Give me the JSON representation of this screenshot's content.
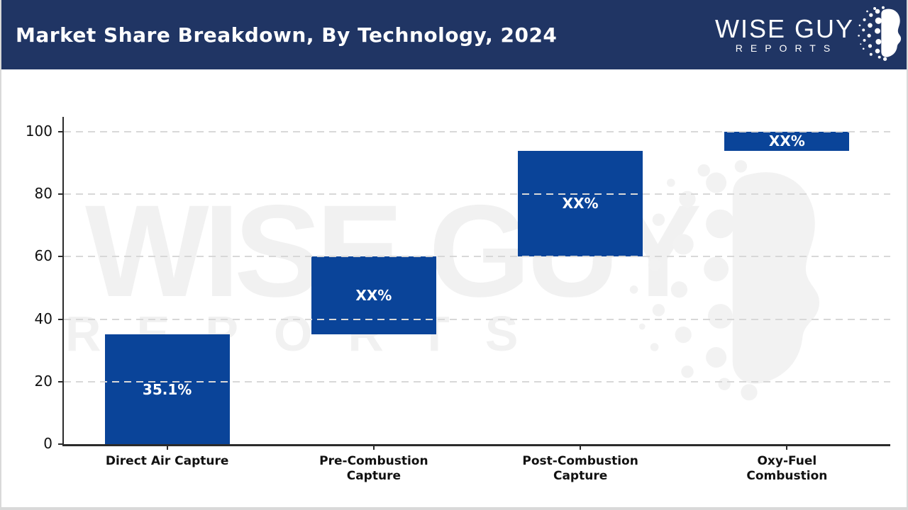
{
  "header": {
    "title": "Market Share Breakdown, By Technology, 2024",
    "logo": {
      "line1": "WISE GUY",
      "line2": "REPORTS"
    }
  },
  "watermark": {
    "line1": "WISE GUY",
    "line2": "REPORTS"
  },
  "chart_data": {
    "type": "bar",
    "subtype": "waterfall",
    "title": "Market Share Breakdown, By Technology, 2024",
    "xlabel": "",
    "ylabel": "",
    "categories": [
      "Direct Air Capture",
      "Pre-Combustion Capture",
      "Post-Combustion Capture",
      "Oxy-Fuel Combustion"
    ],
    "category_lines": [
      [
        "Direct Air Capture"
      ],
      [
        "Pre-Combustion",
        "Capture"
      ],
      [
        "Post-Combustion",
        "Capture"
      ],
      [
        "Oxy-Fuel",
        "Combustion"
      ]
    ],
    "segments": [
      {
        "category": "Direct Air Capture",
        "start": 0,
        "end": 35.1,
        "label": "35.1%"
      },
      {
        "category": "Pre-Combustion Capture",
        "start": 35.1,
        "end": 60.2,
        "label": "XX%"
      },
      {
        "category": "Post-Combustion Capture",
        "start": 60.2,
        "end": 93.9,
        "label": "XX%"
      },
      {
        "category": "Oxy-Fuel Combustion",
        "start": 93.9,
        "end": 100,
        "label": "XX%"
      }
    ],
    "yticks": [
      0,
      20,
      40,
      60,
      80,
      100
    ],
    "ylim": [
      0,
      105
    ],
    "grid": "dashed-horizontal",
    "legend": "none",
    "bar_color": "#0A4499",
    "bar_label_color": "#ffffff",
    "axis_color": "#2b2b2b",
    "grid_color": "#d8d8d8"
  },
  "theme": {
    "header_bg": "#203564",
    "header_text": "#ffffff",
    "watermark_color": "#f1f1f1",
    "page_border": "#d9d9d9"
  }
}
